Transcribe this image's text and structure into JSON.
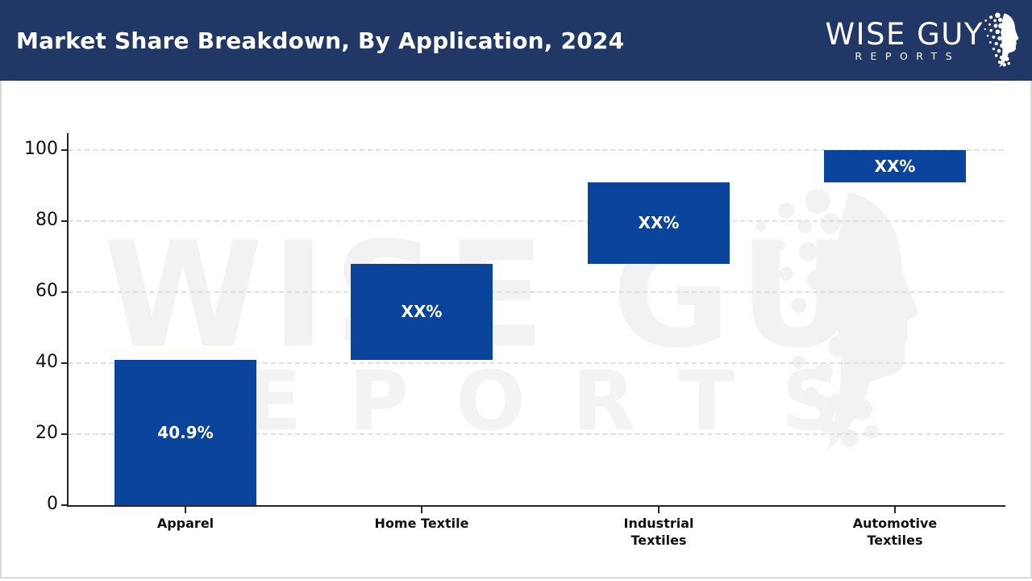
{
  "header": {
    "title": "Market Share Breakdown, By Application, 2024",
    "bg_color": "#213765",
    "logo": {
      "line1": "WISE GUY",
      "line2": "REPORTS"
    }
  },
  "watermark": {
    "line1": "WISE GU",
    "line2": "REPORTS"
  },
  "chart_data": {
    "type": "bar",
    "variant": "stepped-waterfall",
    "title": "Market Share Breakdown, By Application, 2024",
    "categories": [
      [
        "Apparel"
      ],
      [
        "Home Textile"
      ],
      [
        "Industrial",
        "Textiles"
      ],
      [
        "Automotive",
        "Textiles"
      ]
    ],
    "segments": [
      {
        "category": "Apparel",
        "start": 0,
        "end": 40.9,
        "label": "40.9%"
      },
      {
        "category": "Home Textile",
        "start": 40.9,
        "end": 68,
        "label": "XX%"
      },
      {
        "category": "Industrial Textiles",
        "start": 68,
        "end": 90.9,
        "label": "XX%"
      },
      {
        "category": "Automotive Textiles",
        "start": 90.9,
        "end": 100,
        "label": "XX%"
      }
    ],
    "yticks": [
      0,
      20,
      40,
      60,
      80,
      100
    ],
    "ylim": [
      0,
      104
    ],
    "grid": {
      "horizontal": true,
      "style": "dashed",
      "color": "#e0e0e0"
    },
    "bar_color": "#0a449c",
    "bar_label_color": "#ffffff",
    "axis_color": "#262626",
    "tick_label_color": "#111111",
    "legend": "none"
  }
}
